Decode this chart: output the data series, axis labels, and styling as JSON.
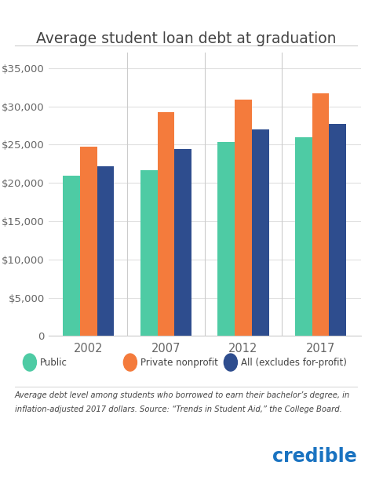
{
  "title": "Average student loan debt at graduation",
  "categories": [
    "2002",
    "2007",
    "2012",
    "2017"
  ],
  "series": {
    "Public": [
      20900,
      21700,
      25400,
      26000
    ],
    "Private nonprofit": [
      24700,
      29200,
      30900,
      31700
    ],
    "All (excludes for-profit)": [
      22200,
      24400,
      27000,
      27700
    ]
  },
  "colors": {
    "Public": "#4ecba4",
    "Private nonprofit": "#f47b3c",
    "All (excludes for-profit)": "#2e4d8e"
  },
  "ylim": [
    0,
    37000
  ],
  "yticks": [
    0,
    5000,
    10000,
    15000,
    20000,
    25000,
    30000,
    35000
  ],
  "background_color": "#ffffff",
  "footnote_line1": "Average debt level among students who borrowed to earn their bachelor’s degree, in",
  "footnote_line2": "inflation-adjusted 2017 dollars. Source: “Trends in Student Aid,” the College Board.",
  "credible_color": "#1a73c1",
  "bar_width": 0.22,
  "title_color": "#444444",
  "tick_color": "#666666",
  "grid_color": "#e0e0e0",
  "separator_color": "#cccccc"
}
